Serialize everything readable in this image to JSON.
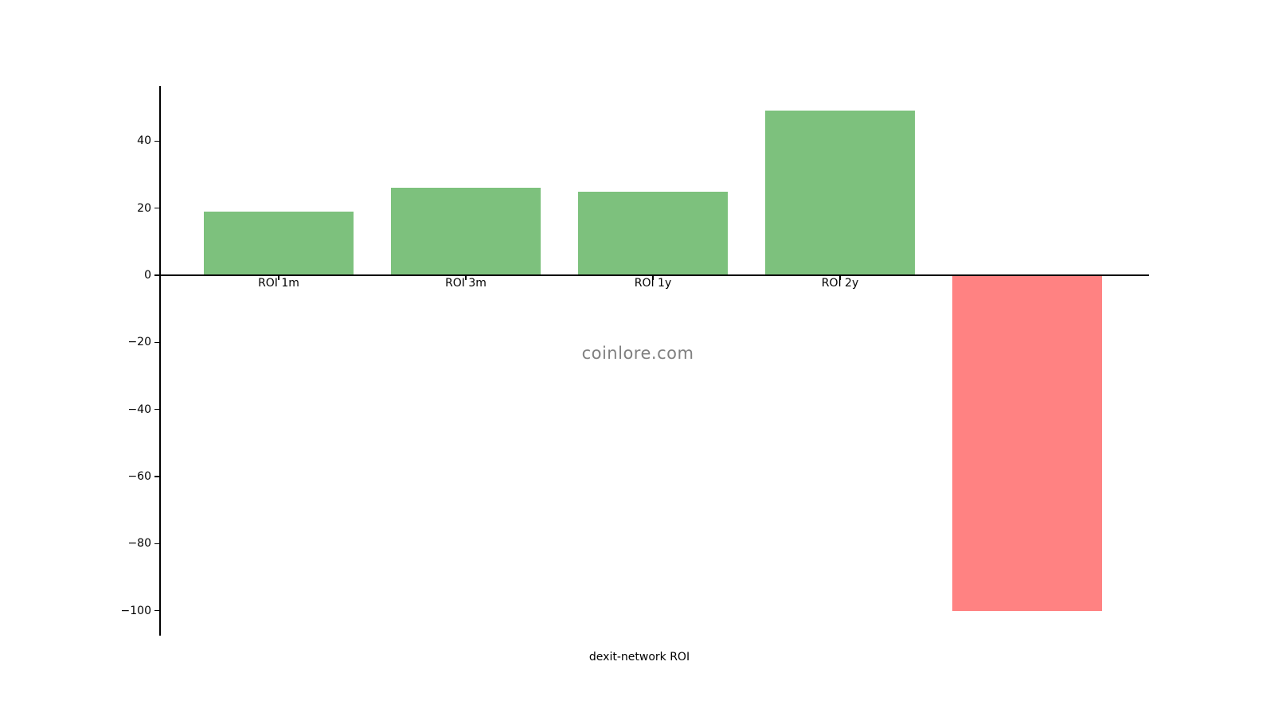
{
  "chart_data": {
    "type": "bar",
    "categories": [
      "ROI 1m",
      "ROI 3m",
      "ROI 1y",
      "ROI 2y",
      ""
    ],
    "values": [
      19,
      26,
      25,
      49,
      -100
    ],
    "title": "",
    "xlabel": "dexit-network ROI",
    "ylabel": "",
    "ylim": [
      -107.45,
      56.45
    ],
    "yticks": [
      40,
      20,
      0,
      -20,
      -40,
      -60,
      -80,
      -100
    ],
    "grid": false,
    "legend": false,
    "bar_color_positive": "#7dc17d",
    "bar_color_negative": "#ff8282",
    "axis_color": "#000000",
    "watermark": {
      "text": "coinlore.com",
      "color": "#808080"
    }
  }
}
